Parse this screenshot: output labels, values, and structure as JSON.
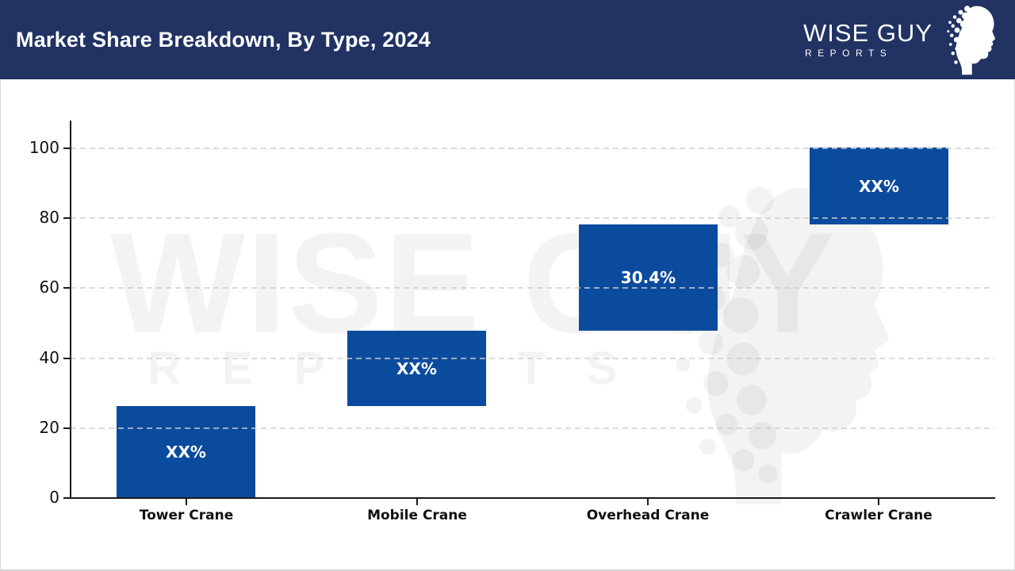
{
  "header": {
    "title": "Market Share Breakdown, By Type, 2024",
    "logo": {
      "line1": "WISE GUY",
      "line2": "REPORTS"
    }
  },
  "watermark": {
    "line1": "WISE GUY",
    "line2": "REPORTS"
  },
  "colors": {
    "header_bg": "#213263",
    "bar": "#0B4B9E",
    "axis": "#1A1A1A",
    "gridline": "#D9D9D9",
    "bar_label": "#FFFFFF"
  },
  "chart_data": {
    "type": "bar",
    "variant": "floating-waterfall",
    "title": "Market Share Breakdown, By Type, 2024",
    "categories": [
      "Tower Crane",
      "Mobile Crane",
      "Overhead Crane",
      "Crawler Crane"
    ],
    "segments": [
      {
        "category": "Tower Crane",
        "from": 0,
        "to": 26,
        "value": 26,
        "label": "XX%"
      },
      {
        "category": "Mobile Crane",
        "from": 26,
        "to": 47.6,
        "value": 21.6,
        "label": "XX%"
      },
      {
        "category": "Overhead Crane",
        "from": 47.6,
        "to": 78,
        "value": 30.4,
        "label": "30.4%"
      },
      {
        "category": "Crawler Crane",
        "from": 78,
        "to": 100,
        "value": 22,
        "label": "XX%"
      }
    ],
    "yticks": [
      0,
      20,
      40,
      60,
      80,
      100
    ],
    "ytick_labels": [
      "0",
      "20",
      "40",
      "60",
      "80",
      "100"
    ],
    "ylim": [
      0,
      107.5
    ],
    "xlabel": "",
    "ylabel": "",
    "grid": "horizontal-dashed-over-bars",
    "legend": "none",
    "total": 100
  }
}
